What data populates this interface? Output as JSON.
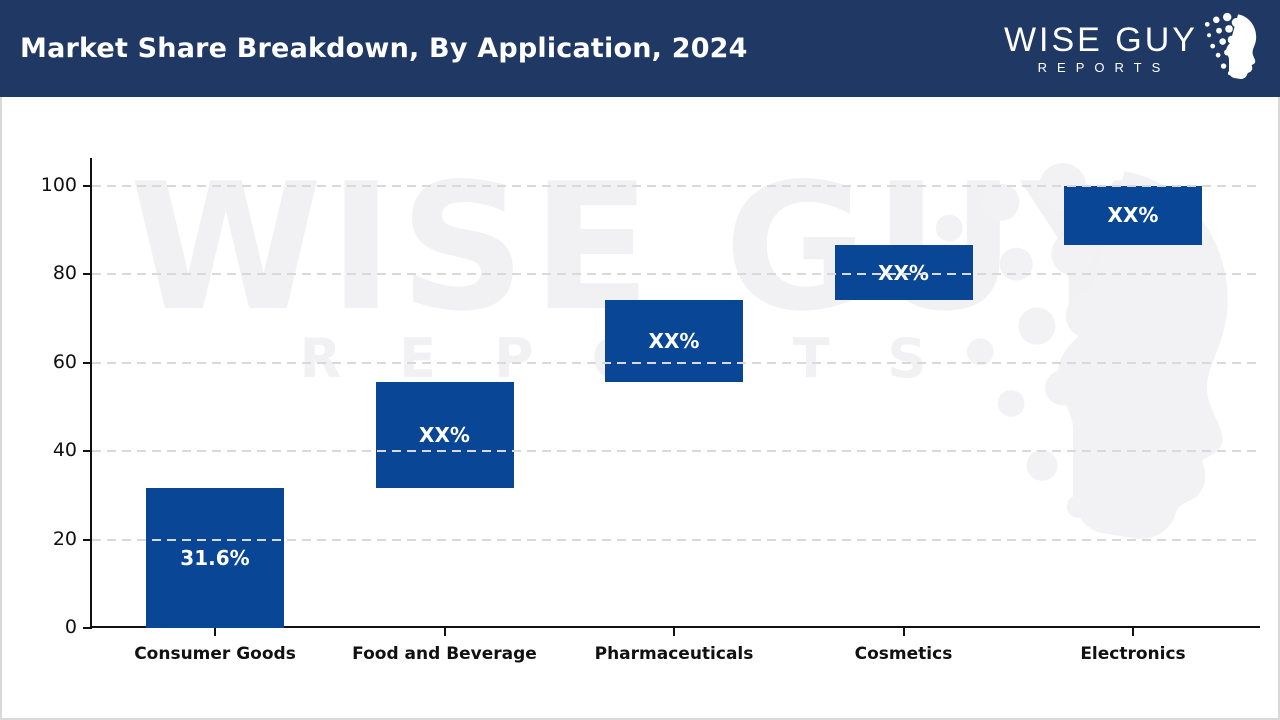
{
  "header": {
    "title": "Market Share Breakdown, By Application, 2024",
    "bg_color": "#1f3864",
    "logo": {
      "line1": "WISE GUY",
      "line2": "REPORTS"
    }
  },
  "watermark": {
    "line1": "WISE GUY",
    "line2": "REPORTS"
  },
  "chart_data": {
    "type": "bar",
    "subtype": "waterfall",
    "title": "Market Share Breakdown, By Application, 2024",
    "xlabel": "",
    "ylabel": "",
    "categories": [
      "Consumer Goods",
      "Food and Beverage",
      "Pharmaceuticals",
      "Cosmetics",
      "Electronics"
    ],
    "segments": [
      {
        "category": "Consumer Goods",
        "start": 0,
        "end": 31.6,
        "label": "31.6%"
      },
      {
        "category": "Food and Beverage",
        "start": 31.6,
        "end": 55.6,
        "label": "XX%"
      },
      {
        "category": "Pharmaceuticals",
        "start": 55.6,
        "end": 74.2,
        "label": "XX%"
      },
      {
        "category": "Cosmetics",
        "start": 74.2,
        "end": 86.6,
        "label": "XX%"
      },
      {
        "category": "Electronics",
        "start": 86.6,
        "end": 100,
        "label": "XX%"
      }
    ],
    "y_ticks": [
      0,
      20,
      40,
      60,
      80,
      100
    ],
    "ylim": [
      0,
      106.3
    ],
    "grid": true,
    "grid_style": "dashed",
    "legend": "none",
    "bar_color": "#0a4696",
    "bar_label_color": "#ffffff",
    "axis_color": "#111111",
    "grid_color": "#d9d9d9"
  }
}
